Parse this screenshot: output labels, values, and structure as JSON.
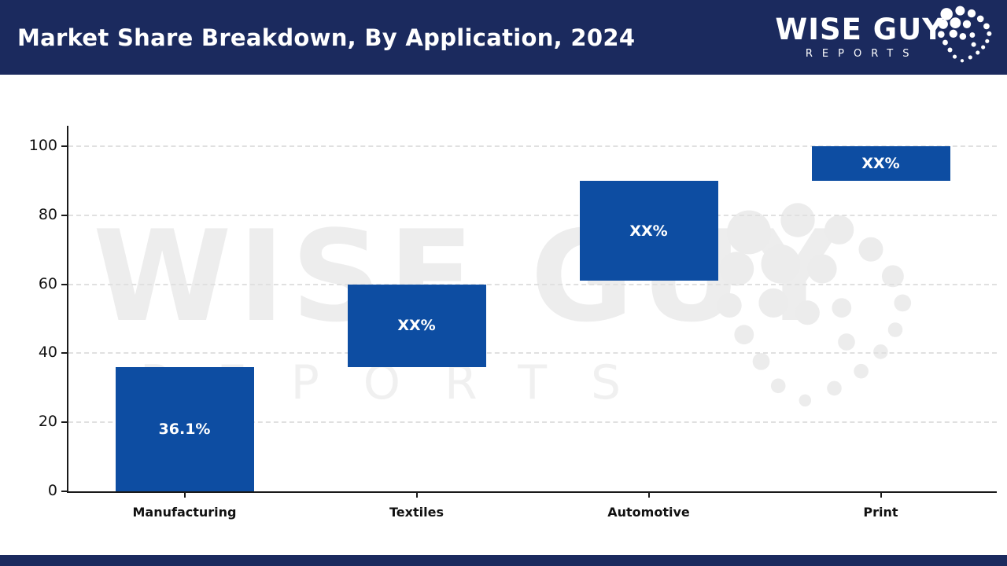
{
  "header": {
    "title": "Market Share Breakdown, By Application, 2024",
    "logo": {
      "line1": "WISE GUY",
      "line2": "REPORTS"
    }
  },
  "watermark": {
    "line1": "WISE GUY",
    "line2": "REPORTS"
  },
  "colors": {
    "navy": "#1b2a5e",
    "bar": "#0d4da2",
    "axis": "#1a1a1a",
    "grid": "#e0e0e0",
    "watermark": "#ededed"
  },
  "chart_data": {
    "type": "bar",
    "variant": "waterfall",
    "title": "Market Share Breakdown, By Application, 2024",
    "categories": [
      "Manufacturing",
      "Textiles",
      "Automotive",
      "Print"
    ],
    "segments": [
      {
        "category": "Manufacturing",
        "start": 0,
        "end": 36.1,
        "label": "36.1%"
      },
      {
        "category": "Textiles",
        "start": 36,
        "end": 60,
        "label": "XX%"
      },
      {
        "category": "Automotive",
        "start": 61,
        "end": 90,
        "label": "XX%"
      },
      {
        "category": "Print",
        "start": 90,
        "end": 100,
        "label": "XX%"
      }
    ],
    "ylim": [
      0,
      100
    ],
    "yticks": [
      0,
      20,
      40,
      60,
      80,
      100
    ],
    "xlabel": "",
    "ylabel": "",
    "grid": "horizontal-dashed",
    "legend": "none"
  }
}
